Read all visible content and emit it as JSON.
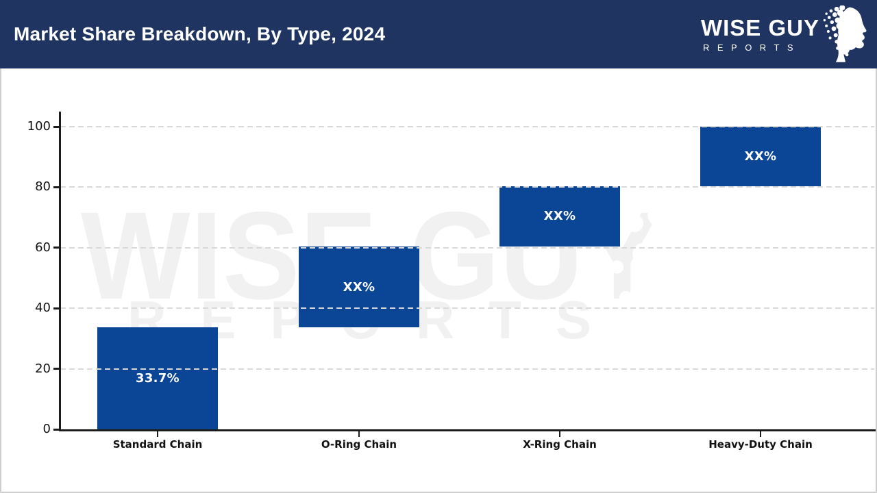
{
  "header": {
    "title": "Market Share Breakdown, By Type, 2024",
    "logo": {
      "brand_line1": "WISE GUY",
      "brand_line2": "REPORTS"
    }
  },
  "watermark": {
    "line1": "WISE GUY",
    "line2": "REPORTS"
  },
  "chart_data": {
    "type": "bar",
    "variant": "floating-segment-waterfall",
    "title": "Market Share Breakdown, By Type, 2024",
    "categories": [
      "Standard Chain",
      "O-Ring Chain",
      "X-Ring Chain",
      "Heavy-Duty Chain"
    ],
    "bars": [
      {
        "category": "Standard Chain",
        "start": 0,
        "end": 33.7,
        "label": "33.7%"
      },
      {
        "category": "O-Ring Chain",
        "start": 33.7,
        "end": 60.4,
        "label": "XX%"
      },
      {
        "category": "X-Ring Chain",
        "start": 60.4,
        "end": 80.4,
        "label": "XX%"
      },
      {
        "category": "Heavy-Duty Chain",
        "start": 80.4,
        "end": 100,
        "label": "XX%"
      }
    ],
    "xlabel": "",
    "ylabel": "",
    "y_ticks": [
      0,
      20,
      40,
      60,
      80,
      100
    ],
    "ylim": [
      0,
      105
    ],
    "grid": "horizontal-dashed",
    "legend": "none",
    "bar_color": "#0b4596",
    "value_label_color": "#ffffff"
  },
  "colors": {
    "header_bg": "#203462",
    "bar": "#0b4596",
    "gridline": "#d9d9d9",
    "axis": "#1c1c1c",
    "watermark": "#f1f1f1",
    "frame_border": "#cfcfcf",
    "title_text": "#ffffff"
  }
}
